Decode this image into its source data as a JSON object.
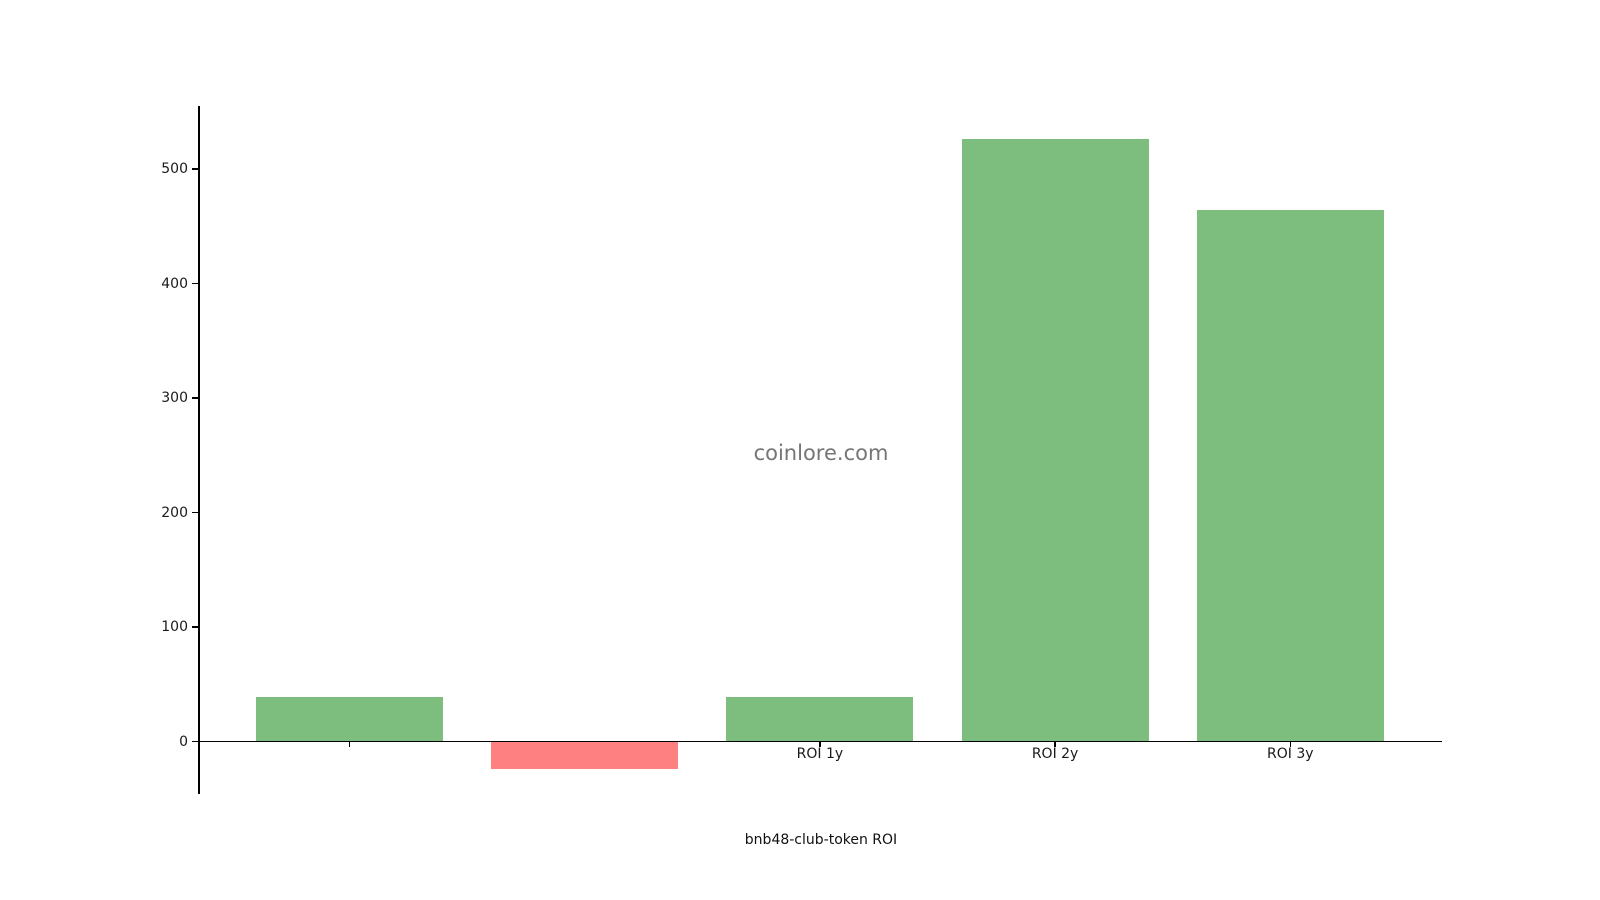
{
  "chart_data": {
    "type": "bar",
    "title": "bnb48-club-token ROI",
    "watermark": "coinlore.com",
    "categories": [
      "",
      "",
      "ROI 1y",
      "ROI 2y",
      "ROI 3y"
    ],
    "values": [
      39,
      -24,
      39,
      526,
      464
    ],
    "bar_colors": [
      "#7dbd7d",
      "#ff8080",
      "#7dbd7d",
      "#7dbd7d",
      "#7dbd7d"
    ],
    "positive_color": "#7dbd7d",
    "negative_color": "#ff8080",
    "yticks": [
      0,
      100,
      200,
      300,
      400,
      500
    ],
    "ylim": [
      -46,
      555
    ],
    "xlabel": "",
    "ylabel": "",
    "grid": false,
    "legend": null,
    "axis_color": "#000000",
    "tick_text_color": "#1a1a1a",
    "watermark_color": "#767676",
    "background_color": "#ffffff"
  }
}
